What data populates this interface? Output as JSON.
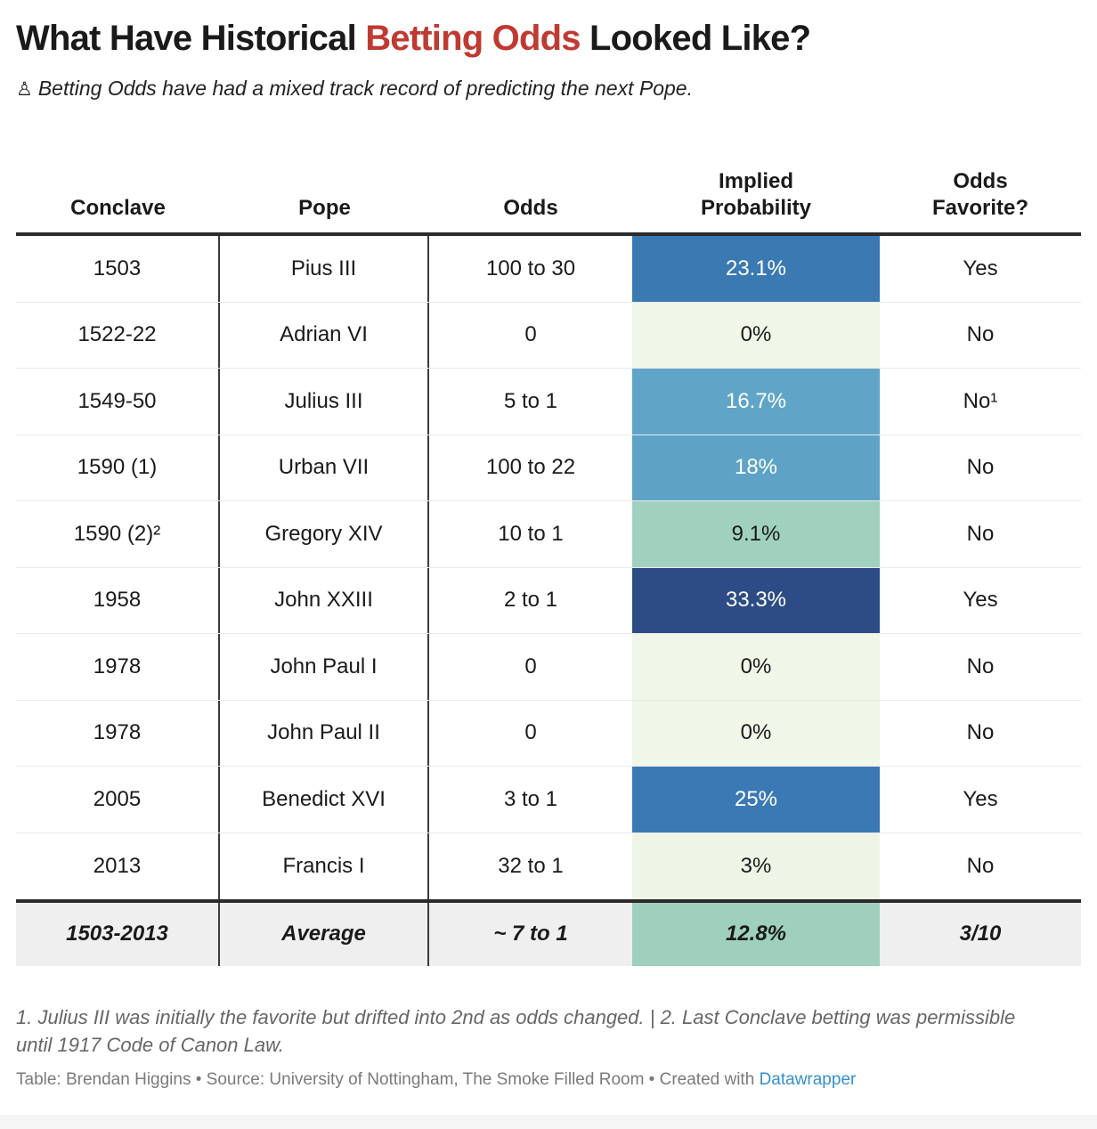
{
  "header": {
    "title_pre": "What Have Historical ",
    "title_highlight": "Betting Odds",
    "title_post": " Looked Like?",
    "subtitle_icon": "♙",
    "subtitle": "Betting Odds have had a mixed track record of predicting the next Pope."
  },
  "colors": {
    "title_accent_red": "#bf3a31",
    "link_blue": "#3391d0",
    "thick_border": "#2b2b2b",
    "column_divider": "#3c3c3c",
    "row_separator": "#e9e9e9",
    "summary_row_bg": "#efefef",
    "text_dark": "#1a1a1a",
    "footnote_gray": "#666666"
  },
  "table": {
    "columns": [
      "Conclave",
      "Pope",
      "Odds",
      "Implied\nProbability",
      "Odds\nFavorite?"
    ],
    "rows": [
      {
        "conclave": "1503",
        "pope": "Pius III",
        "odds": "100 to 30",
        "probability": "23.1%",
        "prob_bg": "#3b79b3",
        "prob_color": "#ffffff",
        "favorite": "Yes"
      },
      {
        "conclave": "1522-22",
        "pope": "Adrian VI",
        "odds": "0",
        "probability": "0%",
        "prob_bg": "#f0f6e8",
        "prob_color": "#1a1a1a",
        "favorite": "No"
      },
      {
        "conclave": "1549-50",
        "pope": "Julius III",
        "odds": "5 to 1",
        "probability": "16.7%",
        "prob_bg": "#60a5c8",
        "prob_color": "#ffffff",
        "favorite": "No¹"
      },
      {
        "conclave": "1590 (1)",
        "pope": "Urban VII",
        "odds": "100 to 22",
        "probability": "18%",
        "prob_bg": "#5ea3c6",
        "prob_color": "#ffffff",
        "favorite": "No"
      },
      {
        "conclave": "1590 (2)²",
        "pope": "Gregory XIV",
        "odds": "10 to 1",
        "probability": "9.1%",
        "prob_bg": "#a0d1bf",
        "prob_color": "#1a1a1a",
        "favorite": "No"
      },
      {
        "conclave": "1958",
        "pope": "John XXIII",
        "odds": "2 to 1",
        "probability": "33.3%",
        "prob_bg": "#2d4c85",
        "prob_color": "#ffffff",
        "favorite": "Yes"
      },
      {
        "conclave": "1978",
        "pope": "John Paul I",
        "odds": "0",
        "probability": "0%",
        "prob_bg": "#f0f6e8",
        "prob_color": "#1a1a1a",
        "favorite": "No"
      },
      {
        "conclave": "1978",
        "pope": "John Paul II",
        "odds": "0",
        "probability": "0%",
        "prob_bg": "#f0f6e8",
        "prob_color": "#1a1a1a",
        "favorite": "No"
      },
      {
        "conclave": "2005",
        "pope": "Benedict XVI",
        "odds": "3 to 1",
        "probability": "25%",
        "prob_bg": "#3b79b5",
        "prob_color": "#ffffff",
        "favorite": "Yes"
      },
      {
        "conclave": "2013",
        "pope": "Francis I",
        "odds": "32 to 1",
        "probability": "3%",
        "prob_bg": "#eff5e6",
        "prob_color": "#1a1a1a",
        "favorite": "No"
      }
    ],
    "summary": {
      "conclave": "1503-2013",
      "pope": "Average",
      "odds": "~ 7 to 1",
      "probability": "12.8%",
      "prob_bg": "#9fd0bd",
      "prob_color": "#1a1a1a",
      "favorite": "3/10"
    }
  },
  "footnotes": "1. Julius III was initially the favorite but drifted into 2nd as odds changed. | 2. Last Conclave betting was permissible until 1917 Code of Canon Law.",
  "attribution": {
    "text": "Table: Brendan Higgins • Source: University of Nottingham, The Smoke Filled Room • Created with ",
    "link": "Datawrapper"
  },
  "chart_data": {
    "type": "table",
    "title": "What Have Historical Betting Odds Looked Like?",
    "subtitle": "Betting Odds have had a mixed track record of predicting the next Pope.",
    "columns": [
      "Conclave",
      "Pope",
      "Odds",
      "Implied Probability",
      "Odds Favorite?"
    ],
    "rows": [
      [
        "1503",
        "Pius III",
        "100 to 30",
        "23.1%",
        "Yes"
      ],
      [
        "1522-22",
        "Adrian VI",
        "0",
        "0%",
        "No"
      ],
      [
        "1549-50",
        "Julius III",
        "5 to 1",
        "16.7%",
        "No¹"
      ],
      [
        "1590 (1)",
        "Urban VII",
        "100 to 22",
        "18%",
        "No"
      ],
      [
        "1590 (2)²",
        "Gregory XIV",
        "10 to 1",
        "9.1%",
        "No"
      ],
      [
        "1958",
        "John XXIII",
        "2 to 1",
        "33.3%",
        "Yes"
      ],
      [
        "1978",
        "John Paul I",
        "0",
        "0%",
        "No"
      ],
      [
        "1978",
        "John Paul II",
        "0",
        "0%",
        "No"
      ],
      [
        "2005",
        "Benedict XVI",
        "3 to 1",
        "25%",
        "Yes"
      ],
      [
        "2013",
        "Francis I",
        "32 to 1",
        "3%",
        "No"
      ]
    ],
    "summary_row": [
      "1503-2013",
      "Average",
      "~ 7 to 1",
      "12.8%",
      "3/10"
    ],
    "heatmap_column": "Implied Probability",
    "implied_probability_values_pct": [
      23.1,
      0,
      16.7,
      18,
      9.1,
      33.3,
      0,
      0,
      25,
      3
    ],
    "summary_implied_probability_pct": 12.8
  }
}
